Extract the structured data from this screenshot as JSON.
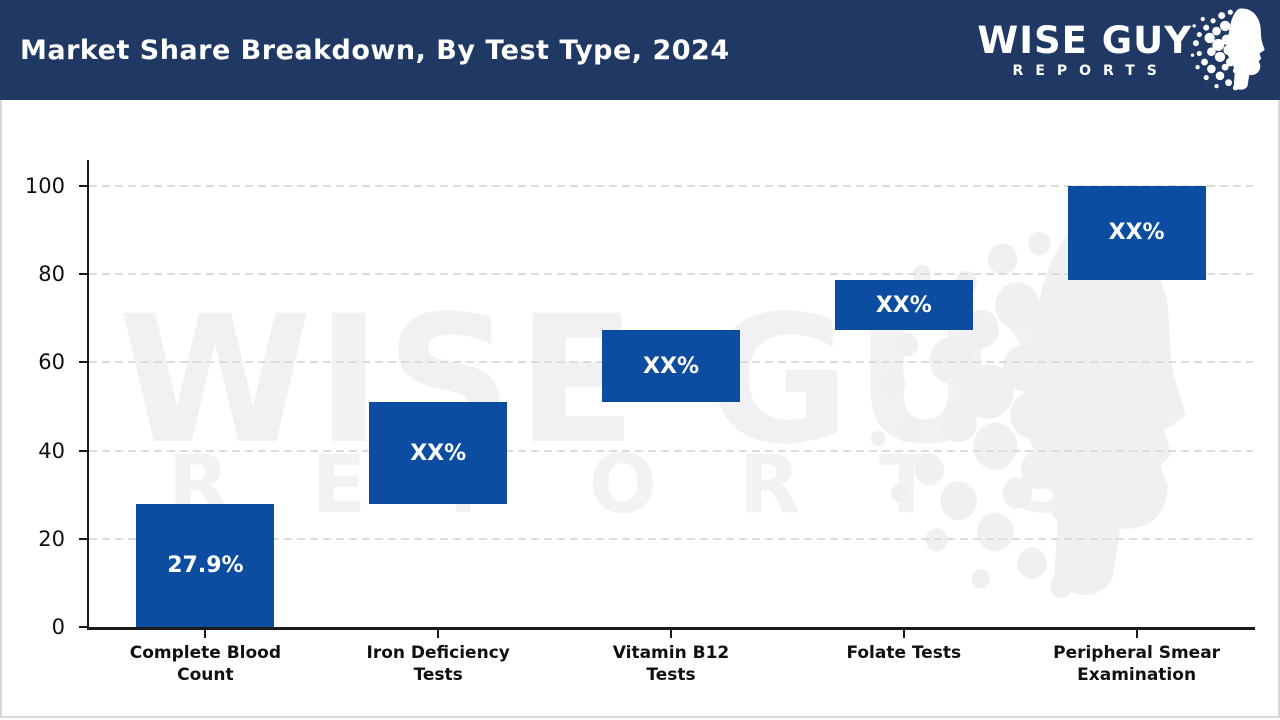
{
  "header": {
    "title": "Market Share Breakdown, By Test Type, 2024",
    "logo": {
      "line1": "WISE GUY",
      "line2": "REPORTS"
    }
  },
  "watermark": {
    "line1": "WISE GUY",
    "line2": "REPORTS"
  },
  "colors": {
    "header_bg": "#1f3864",
    "bar": "#0c4da2",
    "bar_label": "#ffffff",
    "grid": "#dcdcdc",
    "axis": "#1a1a1a",
    "watermark": "#f1f1f3"
  },
  "chart_data": {
    "type": "bar",
    "subtype": "floating-waterfall",
    "title": "Market Share Breakdown, By Test Type, 2024",
    "xlabel": "",
    "ylabel": "",
    "categories": [
      "Complete Blood Count",
      "Iron Deficiency Tests",
      "Vitamin B12 Tests",
      "Folate Tests",
      "Peripheral Smear Examination"
    ],
    "segments": [
      {
        "category": "Complete Blood Count",
        "start": 0,
        "end": 27.9,
        "label": "27.9%"
      },
      {
        "category": "Iron Deficiency Tests",
        "start": 27.9,
        "end": 51.0,
        "label": "XX%"
      },
      {
        "category": "Vitamin B12 Tests",
        "start": 51.0,
        "end": 67.3,
        "label": "XX%"
      },
      {
        "category": "Folate Tests",
        "start": 67.3,
        "end": 78.7,
        "label": "XX%"
      },
      {
        "category": "Peripheral Smear Examination",
        "start": 78.7,
        "end": 100,
        "label": "XX%"
      }
    ],
    "ylim": [
      0,
      100
    ],
    "yticks": [
      0,
      20,
      40,
      60,
      80,
      100
    ],
    "grid": "dashed-horizontal",
    "legend": "none"
  }
}
